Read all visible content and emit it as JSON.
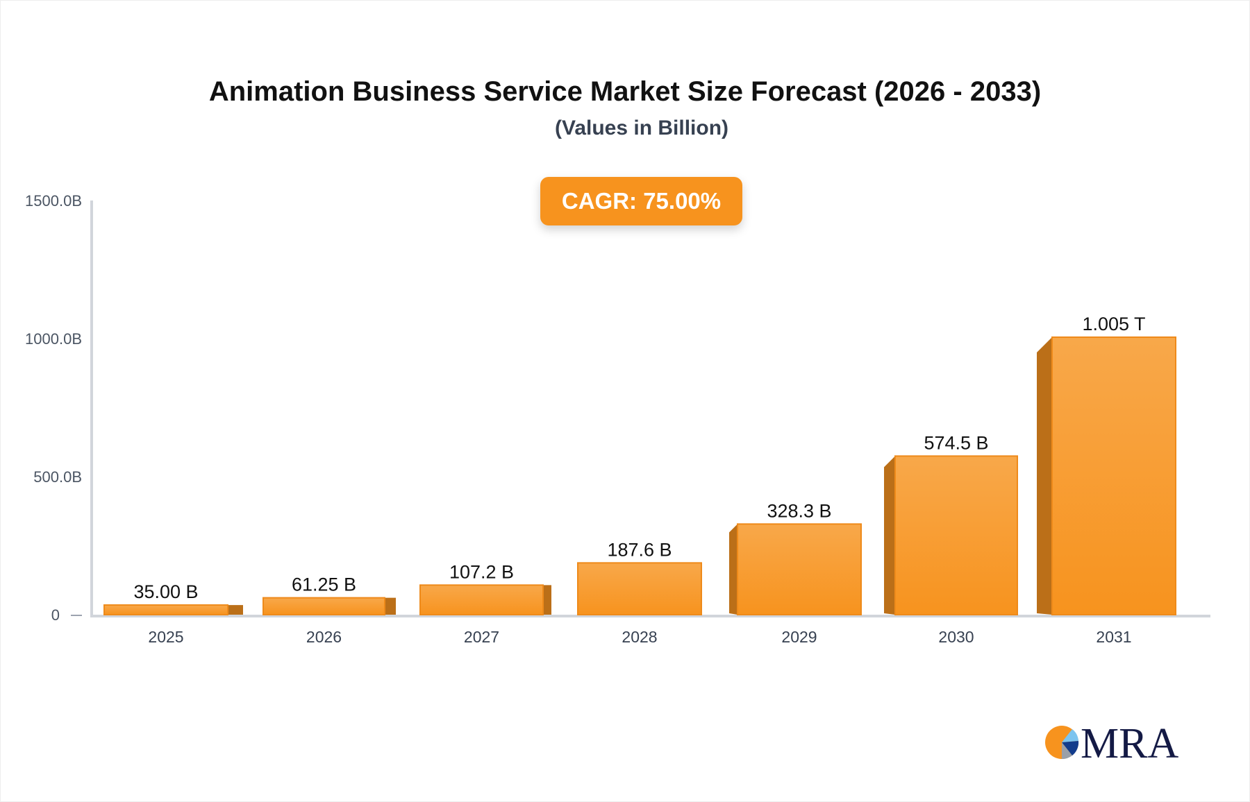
{
  "chart_data": {
    "type": "bar",
    "title": "Animation Business Service Market Size Forecast (2026 - 2033)",
    "subtitle": "(Values in Billion)",
    "annotation": "CAGR: 75.00%",
    "categories": [
      "2025",
      "2026",
      "2027",
      "2028",
      "2029",
      "2030",
      "2031"
    ],
    "values": [
      35.0,
      61.25,
      107.2,
      187.6,
      328.3,
      574.5,
      1005
    ],
    "value_labels": [
      "35.00 B",
      "61.25 B",
      "107.2 B",
      "187.6 B",
      "328.3 B",
      "574.5 B",
      "1.005 T"
    ],
    "yticks": [
      0,
      500,
      1000,
      1500
    ],
    "ytick_labels": [
      "0",
      "500.0B",
      "1000.0B",
      "1500.0B"
    ],
    "ylim": [
      0,
      1500
    ],
    "xlabel": "",
    "ylabel": "",
    "grid": false,
    "colors": {
      "bar": "#f7931e",
      "bar_top": "#f8a84a",
      "bar_side": "#bb6f18",
      "axis": "#d1d5db"
    }
  },
  "logo": {
    "text": "MRA"
  }
}
